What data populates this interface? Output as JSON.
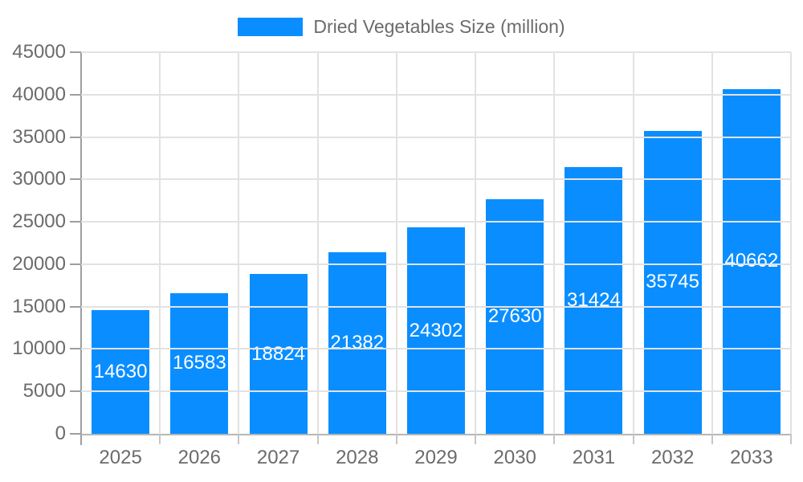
{
  "chart_data": {
    "type": "bar",
    "title": "",
    "legend_label": "Dried Vegetables Size (million)",
    "legend_position": "top-center",
    "categories": [
      "2025",
      "2026",
      "2027",
      "2028",
      "2029",
      "2030",
      "2031",
      "2032",
      "2033"
    ],
    "values": [
      14630,
      16583,
      18824,
      21382,
      24302,
      27630,
      31424,
      35745,
      40662
    ],
    "series": [
      {
        "name": "Dried Vegetables Size (million)",
        "values": [
          14630,
          16583,
          18824,
          21382,
          24302,
          27630,
          31424,
          35745,
          40662
        ]
      }
    ],
    "xlabel": "",
    "ylabel": "",
    "ylim": [
      0,
      45000
    ],
    "ytick_step": 5000,
    "yticks": [
      0,
      5000,
      10000,
      15000,
      20000,
      25000,
      30000,
      35000,
      40000,
      45000
    ],
    "grid": true,
    "value_labels_inside_bars": true,
    "colors": {
      "bar": "#0a8eff",
      "value_label": "#ffffff",
      "axis_text": "#6b6b6b",
      "grid_line": "#e2e2e2",
      "y_axis_line": "#9e9e9e",
      "x_axis_line": "#b6b6b6"
    }
  }
}
